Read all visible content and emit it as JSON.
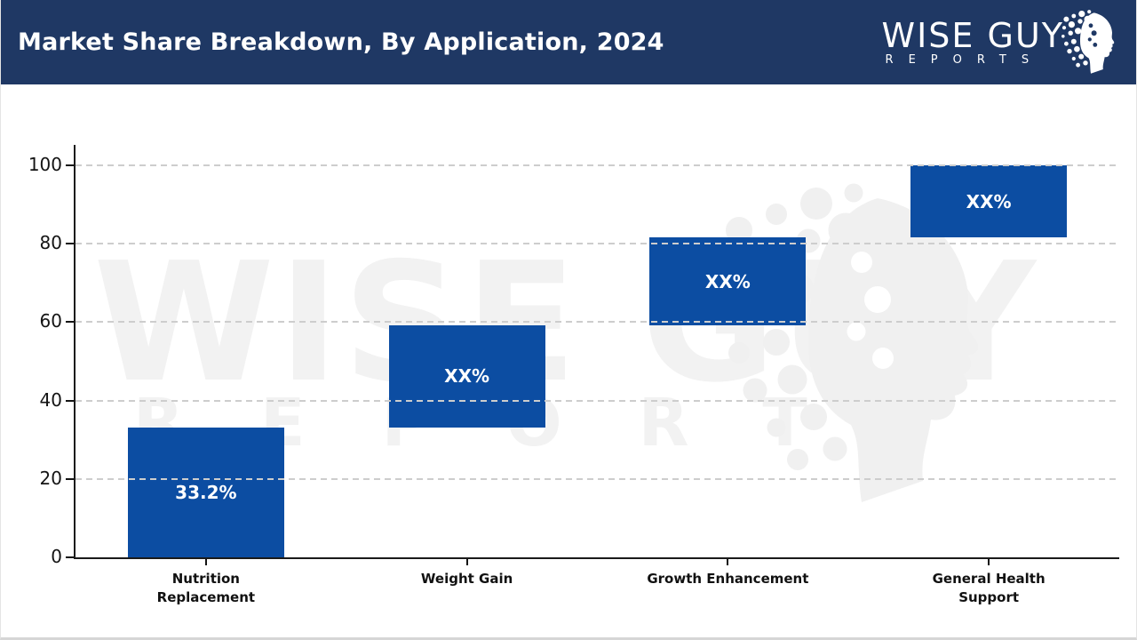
{
  "header": {
    "title": "Market Share Breakdown, By Application, 2024",
    "bg_color": "#1F3864",
    "logo": {
      "name": "WISE GUY",
      "tagline": "REPORTS"
    }
  },
  "watermark": {
    "line1": "WISE GUY",
    "line2": "REPORTS"
  },
  "chart_data": {
    "type": "bar",
    "subtype": "floating-waterfall",
    "title": "Market Share Breakdown, By Application, 2024",
    "categories": [
      "Nutrition\nReplacement",
      "Weight Gain",
      "Growth Enhancement",
      "General Health\nSupport"
    ],
    "series": [
      {
        "name": "Market share (%)",
        "bars": [
          {
            "category": "Nutrition Replacement",
            "base": 0,
            "top": 33.2,
            "label": "33.2%"
          },
          {
            "category": "Weight Gain",
            "base": 33.2,
            "top": 59.2,
            "label": "XX%"
          },
          {
            "category": "Growth Enhancement",
            "base": 59.2,
            "top": 81.6,
            "label": "XX%"
          },
          {
            "category": "General Health Support",
            "base": 81.6,
            "top": 100,
            "label": "XX%"
          }
        ]
      }
    ],
    "ylim": [
      0,
      100
    ],
    "yticks": [
      0,
      20,
      40,
      60,
      80,
      100
    ],
    "grid": "horizontal dashed, drawn above bars",
    "legend": "none",
    "bar_color": "#0C4DA2",
    "bar_label_color": "#FFFFFF",
    "axis_color": "#1A1A1A",
    "grid_color": "#CDCDCD",
    "watermark_color": "#F2F2F2"
  }
}
